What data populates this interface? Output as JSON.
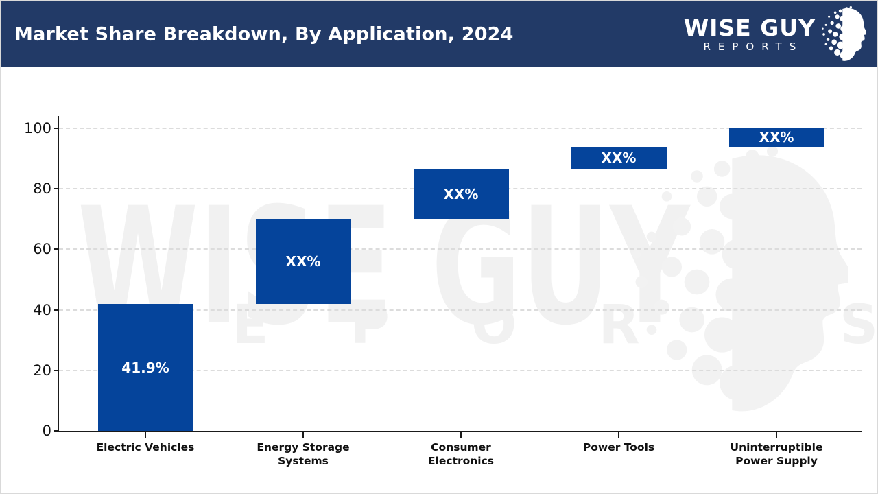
{
  "header": {
    "title": "Market Share Breakdown, By Application, 2024",
    "logo_line1": "WISE GUY",
    "logo_line2": "REPORTS",
    "bg_color": "#223A67"
  },
  "watermark": {
    "line1": "WISE GUY",
    "line2": "R E P O R T S"
  },
  "chart_data": {
    "type": "bar",
    "subtype": "waterfall-breakdown",
    "title": "Market Share Breakdown, By Application, 2024",
    "unit": "percent",
    "categories": [
      "Electric Vehicles",
      "Energy Storage Systems",
      "Consumer Electronics",
      "Power Tools",
      "Uninterruptible Power Supply"
    ],
    "category_label_lines": [
      [
        "Electric Vehicles"
      ],
      [
        "Energy Storage",
        "Systems"
      ],
      [
        "Consumer",
        "Electronics"
      ],
      [
        "Power Tools"
      ],
      [
        "Uninterruptible",
        "Power Supply"
      ]
    ],
    "segments": [
      {
        "name": "Electric Vehicles",
        "start": 0,
        "end": 41.9,
        "label": "41.9%"
      },
      {
        "name": "Energy Storage Systems",
        "start": 41.9,
        "end": 70.1,
        "label": "XX%"
      },
      {
        "name": "Consumer Electronics",
        "start": 70.1,
        "end": 86.4,
        "label": "XX%"
      },
      {
        "name": "Power Tools",
        "start": 86.4,
        "end": 93.9,
        "label": "XX%"
      },
      {
        "name": "Uninterruptible Power Supply",
        "start": 93.9,
        "end": 100,
        "label": "XX%"
      }
    ],
    "yticks": [
      0,
      20,
      40,
      60,
      80,
      100
    ],
    "ylim": [
      0,
      105
    ],
    "bar_color": "#05449B",
    "grid": {
      "axis": "y",
      "style": "dashed",
      "color": "#dcdcdc"
    },
    "legend": "none"
  }
}
